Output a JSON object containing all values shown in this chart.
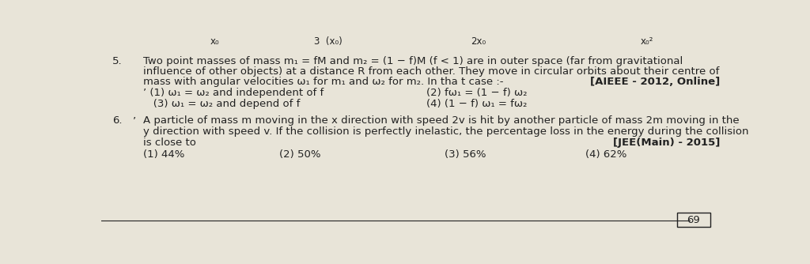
{
  "bg_color": "#e8e4d8",
  "text_color": "#222222",
  "page_number": "69",
  "q5_number": "5.",
  "q5_line1": "Two point masses of mass m₁ = fM and m₂ = (1 − f)M (f < 1) are in outer space (far from gravitational",
  "q5_line2": "influence of other objects) at a distance R from each other. They move in circular orbits about their centre of",
  "q5_line3": "mass with angular velocities ω₁ for m₁ and ω₂ for m₂. In tha t case :-",
  "q5_ref": "[AIEEE - 2012, Online]",
  "q5_opt1": "’ (1) ω₁ = ω₂ and independent of f",
  "q5_opt2": "(2) fω₁ = (1 − f) ω₂",
  "q5_opt3": "   (3) ω₁ = ω₂ and depend of f",
  "q5_opt4": "(4) (1 − f) ω₁ = fω₂",
  "q6_number": "6.",
  "q6_prime": "’",
  "q6_line1": "A particle of mass m moving in the x direction with speed 2v is hit by another particle of mass 2m moving in the",
  "q6_line2": "y direction with speed v. If the collision is perfectly inelastic, the percentage loss in the energy during the collision",
  "q6_line3": "is close to",
  "q6_ref": "[JEE(Main) - 2015]",
  "q6_opt1": "(1) 44%",
  "q6_opt2": "(2) 50%",
  "q6_opt3": "(3) 56%",
  "q6_opt4": "(4) 62%",
  "header_x0": "x₀",
  "header_3x0": "3  (x₀)",
  "header_2x0": "2x₀",
  "header_x02": "x₀²",
  "fs_body": 9.5,
  "fs_header": 8.5,
  "fs_ref": 9.5,
  "fs_page": 9.5,
  "fs_num": 9.5
}
